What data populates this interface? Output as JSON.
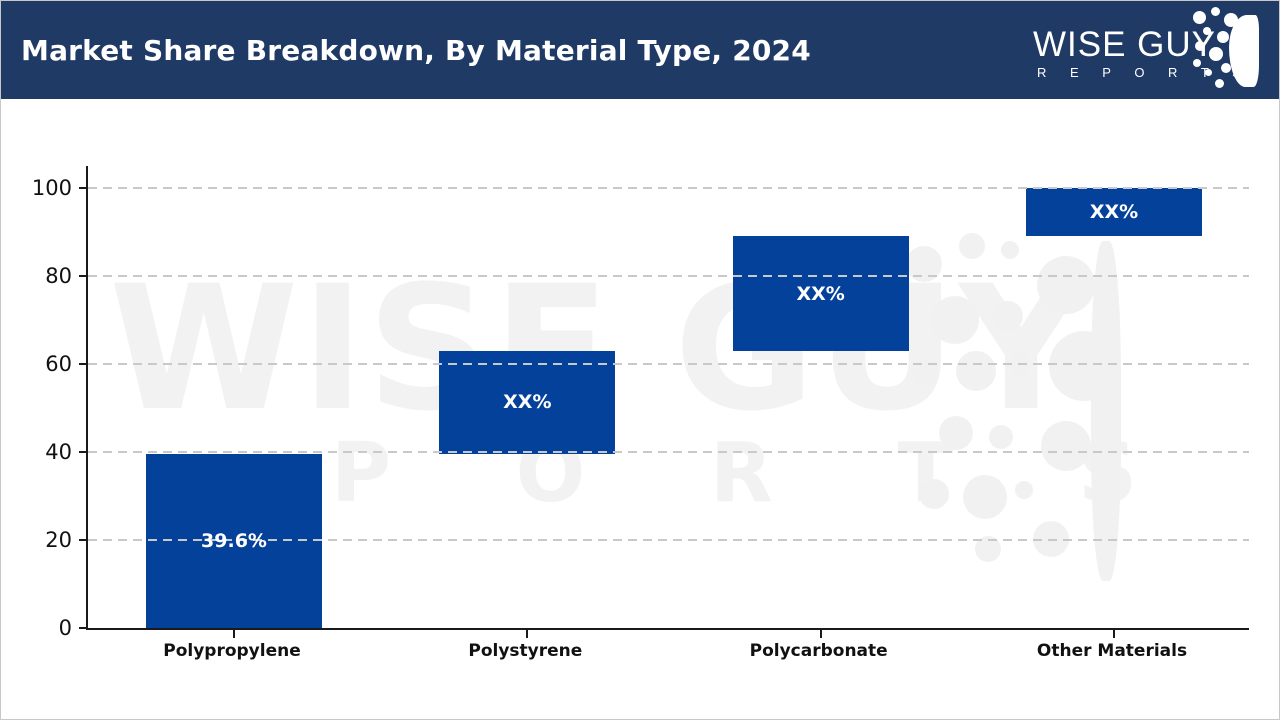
{
  "header": {
    "title": "Market Share Breakdown, By Material Type, 2024",
    "logo": {
      "line1": "WISE GUY",
      "line2": "R E P O R T S",
      "face_icon": "dotted-head-profile"
    },
    "background_color": "#203a66"
  },
  "watermark": {
    "line1": "WISE GUY",
    "line2": "P O R T S",
    "color": "#f2f2f2"
  },
  "chart_data": {
    "type": "bar",
    "subtype": "waterfall",
    "title": "Market Share Breakdown, By Material Type, 2024",
    "xlabel": "",
    "ylabel": "",
    "categories": [
      "Polypropylene",
      "Polystyrene",
      "Polycarbonate",
      "Other Materials"
    ],
    "segments": [
      {
        "category": "Polypropylene",
        "start": 0,
        "end": 39.6,
        "label": "39.6%"
      },
      {
        "category": "Polystyrene",
        "start": 39.6,
        "end": 63,
        "label": "XX%"
      },
      {
        "category": "Polycarbonate",
        "start": 63,
        "end": 89,
        "label": "XX%"
      },
      {
        "category": "Other Materials",
        "start": 89,
        "end": 100,
        "label": "XX%"
      }
    ],
    "ylim": [
      0,
      100
    ],
    "yticks": [
      0,
      20,
      40,
      60,
      80,
      100
    ],
    "grid": "dashed-horizontal",
    "grid_color": "#c9c9c9",
    "bar_color": "#04419b",
    "bar_label_color": "#ffffff",
    "axis_color": "#1a1a1a",
    "legend": "none"
  }
}
